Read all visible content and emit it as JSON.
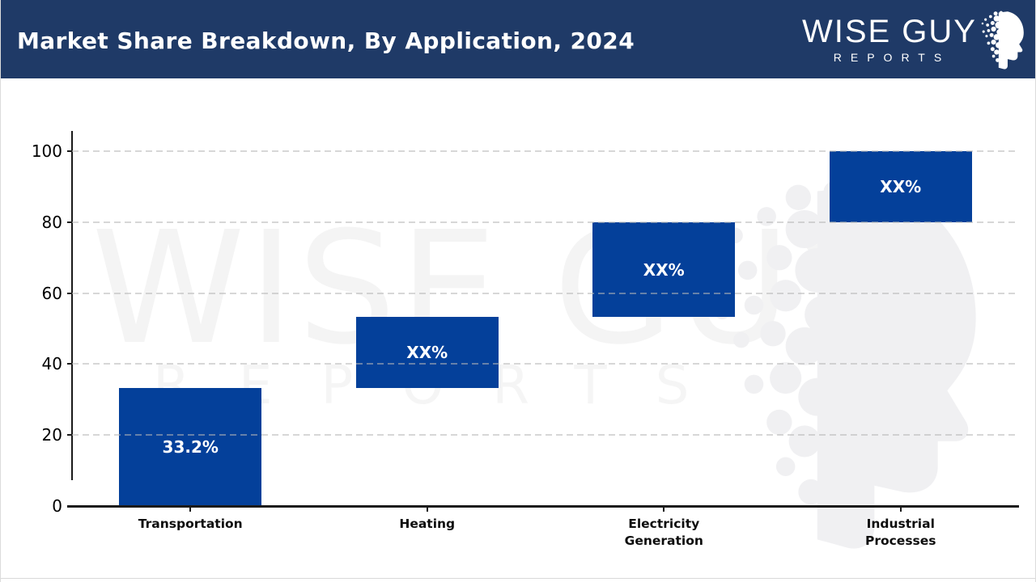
{
  "header": {
    "title": "Market Share Breakdown, By Application, 2024",
    "logo": {
      "line1": "WISE GUY",
      "line2": "REPORTS"
    }
  },
  "watermark": {
    "line1": "WISE GUY",
    "line2": "REPORTS"
  },
  "chart_data": {
    "type": "bar",
    "subtype": "waterfall-percentage-breakdown",
    "title": "Market Share Breakdown, By Application, 2024",
    "categories": [
      "Transportation",
      "Heating",
      "Electricity Generation",
      "Industrial Processes"
    ],
    "category_lines": [
      [
        "Transportation"
      ],
      [
        "Heating"
      ],
      [
        "Electricity",
        "Generation"
      ],
      [
        "Industrial",
        "Processes"
      ]
    ],
    "segments": [
      {
        "category": "Transportation",
        "start": 0,
        "end": 33.2,
        "value": 33.2,
        "label": "33.2%"
      },
      {
        "category": "Heating",
        "start": 33.2,
        "end": 53.2,
        "value": 20,
        "label": "XX%"
      },
      {
        "category": "Electricity Generation",
        "start": 53.2,
        "end": 80,
        "value": 26.8,
        "label": "XX%"
      },
      {
        "category": "Industrial Processes",
        "start": 80,
        "end": 100,
        "value": 20,
        "label": "XX%"
      }
    ],
    "xlabel": "",
    "ylabel": "",
    "ylim": [
      0,
      100
    ],
    "yticks": [
      0,
      20,
      40,
      60,
      80,
      100
    ],
    "grid": "horizontal-dashed",
    "legend": null
  },
  "colors": {
    "header_bg": "#1F3A67",
    "bar": "#04409A",
    "axis": "#1A1A1A",
    "gridline": "#D9D9D9",
    "watermark": "#F0F0F2"
  }
}
